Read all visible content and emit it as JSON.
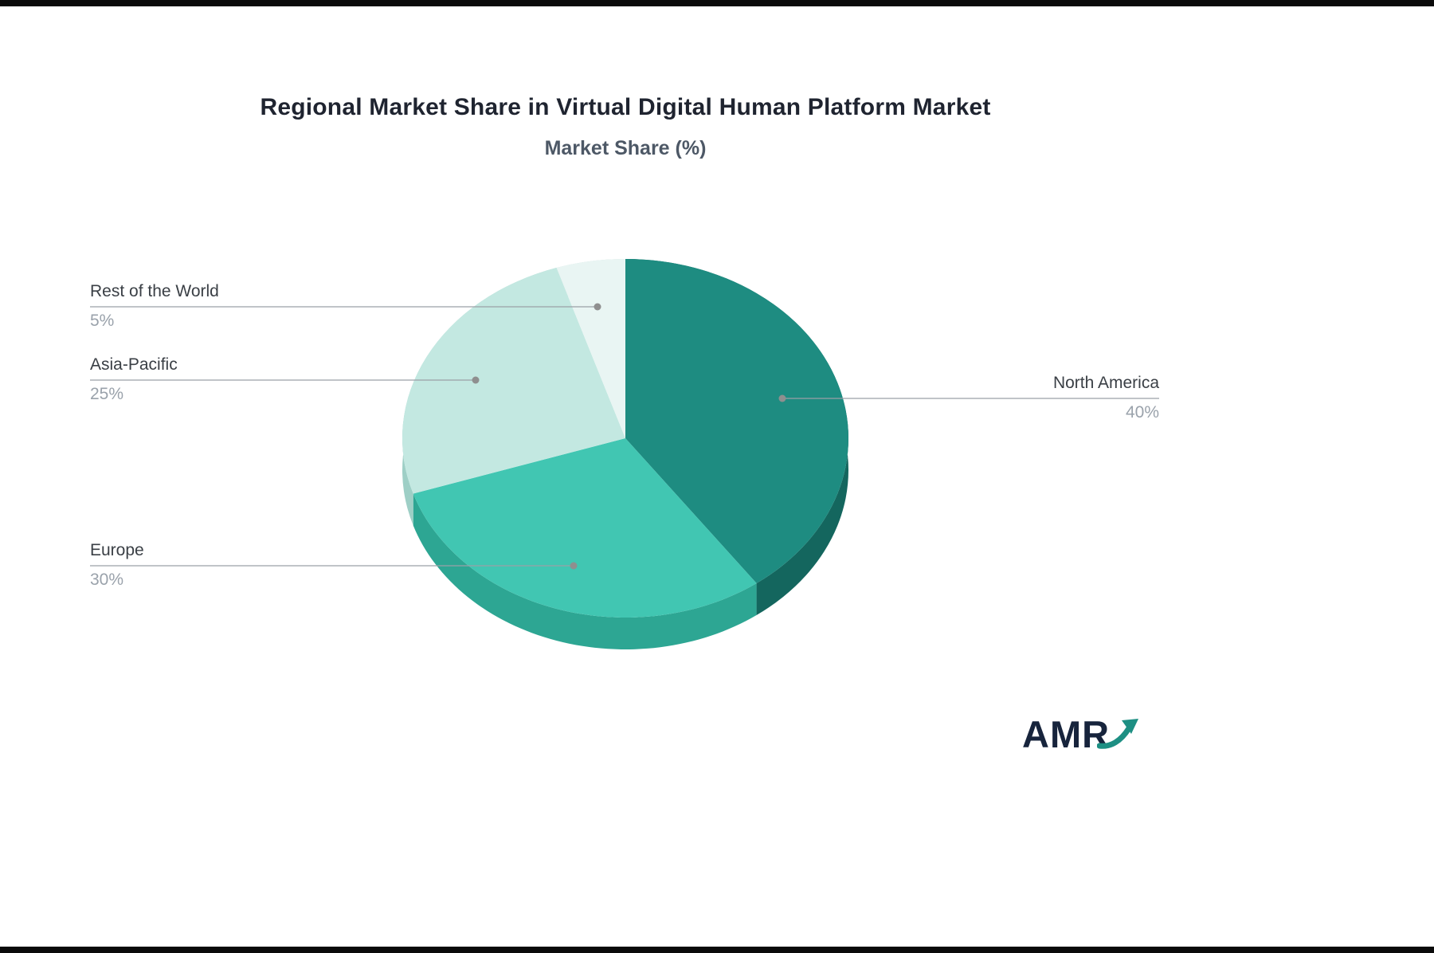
{
  "chart_data": {
    "type": "pie",
    "title": "Regional Market Share in Virtual Digital Human Platform Market",
    "subtitle": "Market Share (%)",
    "unit": "%",
    "direction": "clockwise",
    "start_angle_deg": 0,
    "effect": "3d",
    "legend_position": "none",
    "labels": "leader-lines",
    "slices": [
      {
        "label": "North America",
        "value": 40,
        "pct_label": "40%",
        "color": "#1e8c81",
        "side_color": "#14665e"
      },
      {
        "label": "Europe",
        "value": 30,
        "pct_label": "30%",
        "color": "#41c6b2",
        "side_color": "#2da693"
      },
      {
        "label": "Asia-Pacific",
        "value": 25,
        "pct_label": "25%",
        "color": "#c3e8e1",
        "side_color": "#9ecfc6"
      },
      {
        "label": "Rest of the World",
        "value": 5,
        "pct_label": "5%",
        "color": "#e9f5f3",
        "side_color": "#c6dcd8"
      }
    ],
    "leader_line_color": "#9aa0a6",
    "leader_dot_color": "#8f8f8f",
    "label_color": "#3a3f45",
    "value_color": "#9aa2ab"
  },
  "logo": {
    "text": "AMR",
    "text_color": "#17243c",
    "arrow_color": "#1d8f83"
  }
}
